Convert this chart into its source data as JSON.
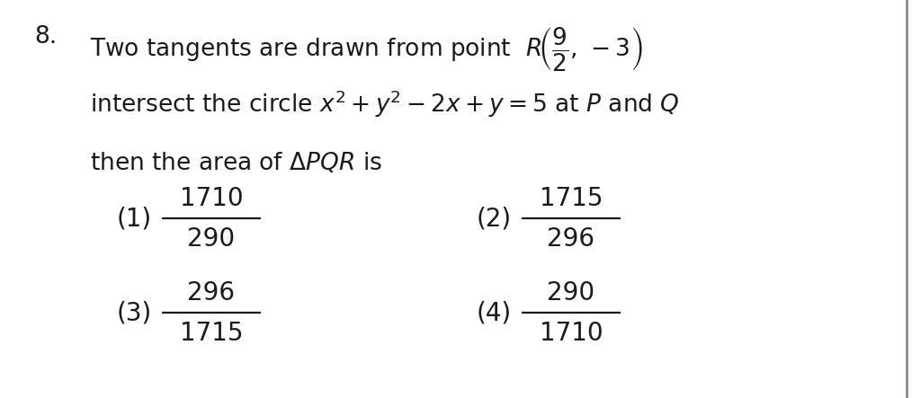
{
  "background_color": "#ffffff",
  "text_color": "#1a1a1a",
  "divider_color": "#1a1a1a",
  "right_line_color": "#888888",
  "font_size": 19,
  "font_size_options": 20,
  "question_number": "8.",
  "line1": "Two tangents are drawn from point  $R\\!\\left(\\dfrac{9}{2},\\,-3\\right)$",
  "line2": "intersect the circle $x^2 + y^2 - 2x + y = 5$ at $P$ and $Q$",
  "line3": "then the area of $\\Delta PQR$ is",
  "options": [
    {
      "label": "(1)",
      "numerator": "1710",
      "denominator": "290",
      "col": 0,
      "row": 0
    },
    {
      "label": "(2)",
      "numerator": "1715",
      "denominator": "296",
      "col": 1,
      "row": 0
    },
    {
      "label": "(3)",
      "numerator": "296",
      "denominator": "1715",
      "col": 0,
      "row": 1
    },
    {
      "label": "(4)",
      "numerator": "290",
      "denominator": "1710",
      "col": 1,
      "row": 1
    }
  ]
}
